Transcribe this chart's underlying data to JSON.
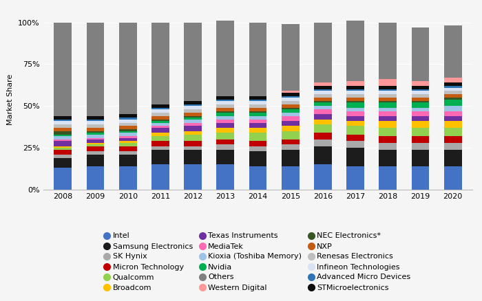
{
  "years": [
    2008,
    2009,
    2010,
    2011,
    2012,
    2013,
    2014,
    2015,
    2016,
    2017,
    2018,
    2019,
    2020
  ],
  "stack_order": [
    "Intel",
    "Samsung Electronics",
    "SK Hynix",
    "Micron Technology",
    "Qualcomm",
    "Broadcom",
    "Texas Instruments",
    "MediaTek",
    "Kioxia (Toshiba Memory)",
    "Nvidia",
    "NEC Electronics*",
    "NXP",
    "Renesas Electronics",
    "Infineon Technologies",
    "Advanced Micro Devices",
    "STMicroelectronics",
    "Western Digital",
    "Others"
  ],
  "legend_order": [
    "Intel",
    "Samsung Electronics",
    "SK Hynix",
    "Micron Technology",
    "Qualcomm",
    "Broadcom",
    "Texas Instruments",
    "MediaTek",
    "Kioxia (Toshiba Memory)",
    "Nvidia",
    "Others",
    "Western Digital",
    "NEC Electronics*",
    "NXP",
    "Renesas Electronics",
    "Infineon Technologies",
    "Advanced Micro Devices",
    "STMicroelectronics"
  ],
  "colors": {
    "Intel": "#4472C4",
    "Samsung Electronics": "#1C1C1C",
    "SK Hynix": "#A9A9A9",
    "Micron Technology": "#C00000",
    "Qualcomm": "#92D050",
    "Broadcom": "#FFC000",
    "Texas Instruments": "#7030A0",
    "MediaTek": "#FF69B4",
    "Kioxia (Toshiba Memory)": "#9DC3E6",
    "Nvidia": "#00B050",
    "Others": "#808080",
    "Western Digital": "#FF9999",
    "NEC Electronics*": "#375623",
    "NXP": "#C55A11",
    "Renesas Electronics": "#BFBFBF",
    "Infineon Technologies": "#DAE3F3",
    "Advanced Micro Devices": "#2E75B6",
    "STMicroelectronics": "#0D0D0D"
  },
  "data": {
    "Intel": [
      13,
      14,
      14,
      15,
      15,
      15,
      14,
      14,
      15,
      14,
      14,
      14,
      14
    ],
    "Samsung Electronics": [
      6,
      7,
      7,
      9,
      9,
      9,
      9,
      10,
      11,
      11,
      10,
      10,
      10
    ],
    "SK Hynix": [
      2,
      2,
      2,
      2,
      2,
      3,
      3,
      3,
      4,
      4,
      4,
      4,
      4
    ],
    "Micron Technology": [
      3,
      3,
      3,
      3,
      3,
      3,
      3,
      3,
      4,
      4,
      4,
      4,
      4
    ],
    "Qualcomm": [
      1,
      1,
      2,
      3,
      4,
      4,
      5,
      5,
      5,
      5,
      5,
      5,
      5
    ],
    "Broadcom": [
      1,
      1,
      1,
      2,
      2,
      3,
      3,
      3,
      3,
      3,
      4,
      4,
      4
    ],
    "Texas Instruments": [
      3,
      2,
      2,
      3,
      3,
      3,
      3,
      3,
      3,
      3,
      3,
      3,
      3
    ],
    "MediaTek": [
      1,
      1,
      1,
      1,
      2,
      2,
      2,
      3,
      3,
      3,
      3,
      3,
      3
    ],
    "Kioxia (Toshiba Memory)": [
      2,
      2,
      2,
      2,
      2,
      2,
      2,
      2,
      2,
      2,
      2,
      2,
      3
    ],
    "Nvidia": [
      1,
      1,
      1,
      1,
      1,
      2,
      2,
      2,
      2,
      3,
      3,
      3,
      4
    ],
    "NEC Electronics*": [
      2,
      1,
      1,
      1,
      1,
      1,
      1,
      1,
      1,
      1,
      1,
      1,
      1
    ],
    "NXP": [
      2,
      2,
      2,
      2,
      2,
      2,
      2,
      2,
      2,
      2,
      2,
      2,
      2
    ],
    "Renesas Electronics": [
      2,
      2,
      2,
      2,
      2,
      2,
      2,
      2,
      2,
      2,
      2,
      2,
      2
    ],
    "Infineon Technologies": [
      2,
      2,
      2,
      2,
      2,
      2,
      2,
      2,
      2,
      2,
      2,
      2,
      2
    ],
    "Advanced Micro Devices": [
      1,
      1,
      1,
      1,
      1,
      1,
      1,
      1,
      1,
      1,
      1,
      1,
      1
    ],
    "STMicroelectronics": [
      2,
      2,
      2,
      2,
      2,
      2,
      2,
      2,
      2,
      2,
      2,
      2,
      2
    ],
    "Western Digital": [
      0,
      0,
      0,
      0,
      0,
      0,
      0,
      1,
      2,
      3,
      4,
      3,
      3
    ],
    "Others": [
      56,
      56,
      55,
      49,
      47,
      45,
      44,
      40,
      36,
      36,
      34,
      32,
      31
    ]
  },
  "ylabel": "Market Share",
  "yticks": [
    0,
    25,
    50,
    75,
    100
  ],
  "ytick_labels": [
    "0%",
    "25%",
    "50%",
    "75%",
    "100%"
  ],
  "bar_width": 0.55,
  "label_fontsize": 8,
  "legend_fontsize": 8
}
